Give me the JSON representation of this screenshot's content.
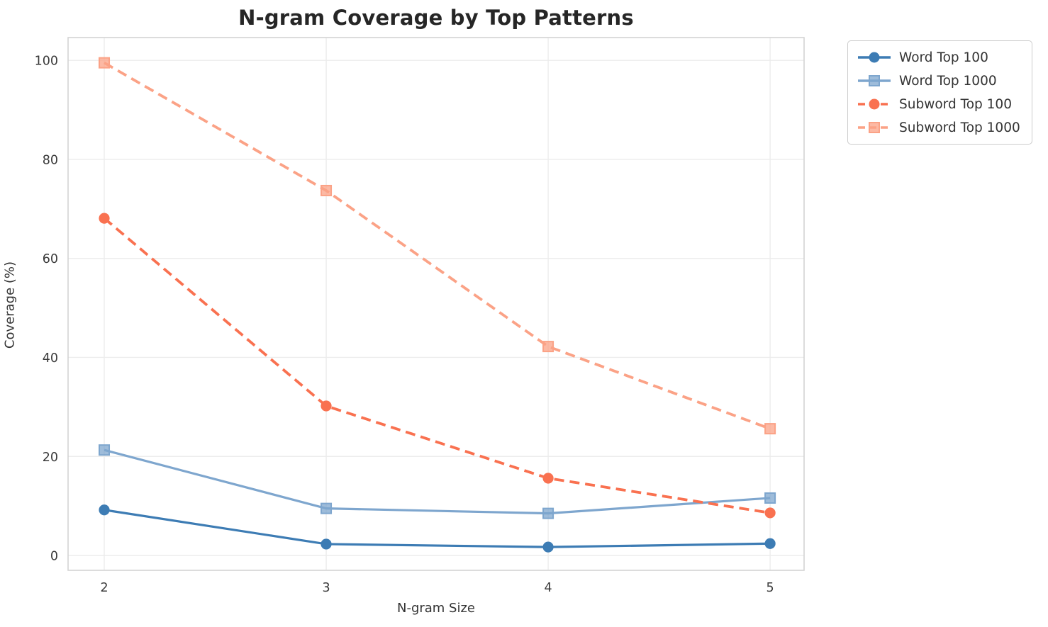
{
  "chart_data": {
    "type": "line",
    "title": "N-gram Coverage by Top Patterns",
    "xlabel": "N-gram Size",
    "ylabel": "Coverage (%)",
    "x": [
      2,
      3,
      4,
      5
    ],
    "xticks": [
      2,
      3,
      4,
      5
    ],
    "yticks": [
      0,
      20,
      40,
      60,
      80,
      100
    ],
    "xlim": [
      1.837,
      5.153
    ],
    "ylim": [
      -3.0,
      104.6
    ],
    "grid": true,
    "legend_position": "upper-right-outside",
    "series": [
      {
        "name": "Word Top 100",
        "color": "#3d7cb4",
        "linestyle": "solid",
        "marker": "circle",
        "values": [
          9.2,
          2.3,
          1.7,
          2.4
        ]
      },
      {
        "name": "Word Top 1000",
        "color": "#7ea6ce",
        "linestyle": "solid",
        "marker": "square",
        "values": [
          21.3,
          9.5,
          8.5,
          11.6
        ]
      },
      {
        "name": "Subword Top 100",
        "color": "#f97150",
        "linestyle": "dashed",
        "marker": "circle",
        "values": [
          68.1,
          30.2,
          15.6,
          8.6
        ]
      },
      {
        "name": "Subword Top 1000",
        "color": "#fba286",
        "linestyle": "dashed",
        "marker": "square",
        "values": [
          99.5,
          73.7,
          42.2,
          25.6
        ]
      }
    ],
    "colors": {
      "grid_line": "#ececec",
      "spine": "#d4d4d4",
      "tick_label": "#3a3a3a",
      "title_text": "#262626",
      "axis_label_text": "#333333"
    }
  }
}
